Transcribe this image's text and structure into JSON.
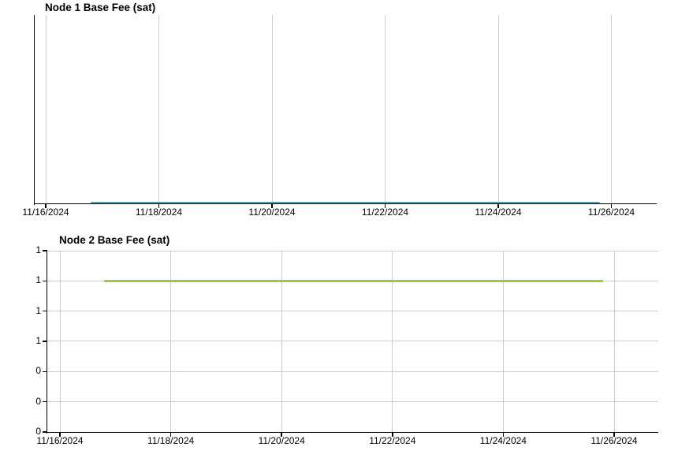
{
  "colors": {
    "background": "#ffffff",
    "grid": "#cccccc",
    "axis": "#000000",
    "text": "#000000",
    "node1_line": "#4aa3ad",
    "node2_line": "#9bcb3b"
  },
  "chart_data": [
    {
      "type": "line",
      "title": "Node 1 Base Fee (sat)",
      "xlabel": "",
      "ylabel": "",
      "x_tick_labels": [
        "11/16/2024",
        "11/18/2024",
        "11/20/2024",
        "11/22/2024",
        "11/24/2024",
        "11/26/2024"
      ],
      "x_tick_interval_days": 2,
      "y_tick_labels": [],
      "grid": "vertical-only",
      "legend": "none",
      "series": [
        {
          "name": "Node 1 base fee",
          "color": "#4aa3ad",
          "constant_value": 0,
          "start_day_offset": 0.8,
          "end_day_offset": 9.8,
          "description": "flat line at 0 sat from ~11/16/2024 evening to ~11/25/2024 evening, drawn on the x-axis"
        }
      ]
    },
    {
      "type": "line",
      "title": "Node 2 Base Fee (sat)",
      "xlabel": "",
      "ylabel": "",
      "x_tick_labels": [
        "11/16/2024",
        "11/18/2024",
        "11/20/2024",
        "11/22/2024",
        "11/24/2024",
        "11/26/2024"
      ],
      "x_tick_interval_days": 2,
      "y_tick_labels": [
        "1",
        "1",
        "1",
        "1",
        "0",
        "0",
        "0"
      ],
      "y_tick_values": [
        1.2,
        1.0,
        0.8,
        0.6,
        0.4,
        0.2,
        0
      ],
      "ylim": [
        0,
        1.2
      ],
      "grid": "both",
      "legend": "none",
      "series": [
        {
          "name": "Node 2 base fee",
          "color": "#9bcb3b",
          "constant_value": 1,
          "start_day_offset": 0.8,
          "end_day_offset": 9.8,
          "description": "flat line at 1 sat from ~11/16/2024 evening to ~11/25/2024 afternoon"
        }
      ]
    }
  ]
}
